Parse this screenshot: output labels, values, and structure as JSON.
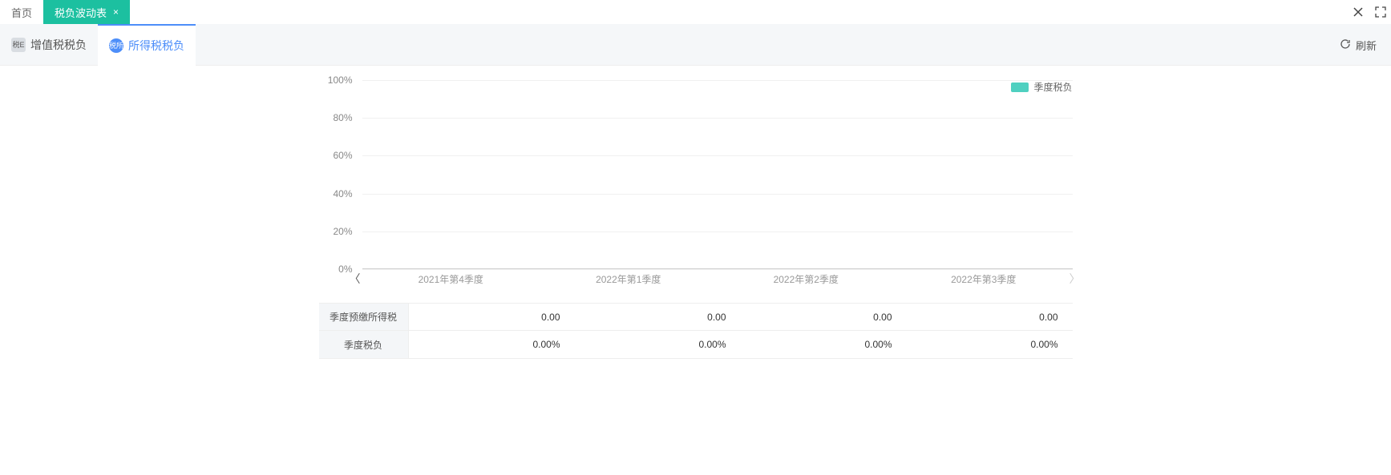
{
  "top_tabs": {
    "home": "首页",
    "active": "税负波动表"
  },
  "sub_tabs": {
    "vat": "增值税税负",
    "income": "所得税税负",
    "vat_badge": "税E",
    "income_badge": "税所"
  },
  "toolbar": {
    "refresh": "刷新"
  },
  "legend": {
    "label": "季度税负",
    "color": "#4fd0c0"
  },
  "chart": {
    "type": "bar",
    "y_ticks": [
      "0%",
      "20%",
      "40%",
      "60%",
      "80%",
      "100%"
    ],
    "y_positions_pct": [
      100,
      80,
      60,
      40,
      20,
      0
    ],
    "x_labels": [
      "2021年第4季度",
      "2022年第1季度",
      "2022年第2季度",
      "2022年第3季度"
    ],
    "series_values": [
      0,
      0,
      0,
      0
    ],
    "series_color": "#4fd0c0",
    "grid_color": "#f0f0f0",
    "axis_color": "#cfcfcf",
    "background_color": "#ffffff",
    "ylim": [
      0,
      100
    ]
  },
  "table": {
    "row1_label": "季度预缴所得税",
    "row2_label": "季度税负",
    "row1_values": [
      "0.00",
      "0.00",
      "0.00",
      "0.00"
    ],
    "row2_values": [
      "0.00%",
      "0.00%",
      "0.00%",
      "0.00%"
    ]
  }
}
